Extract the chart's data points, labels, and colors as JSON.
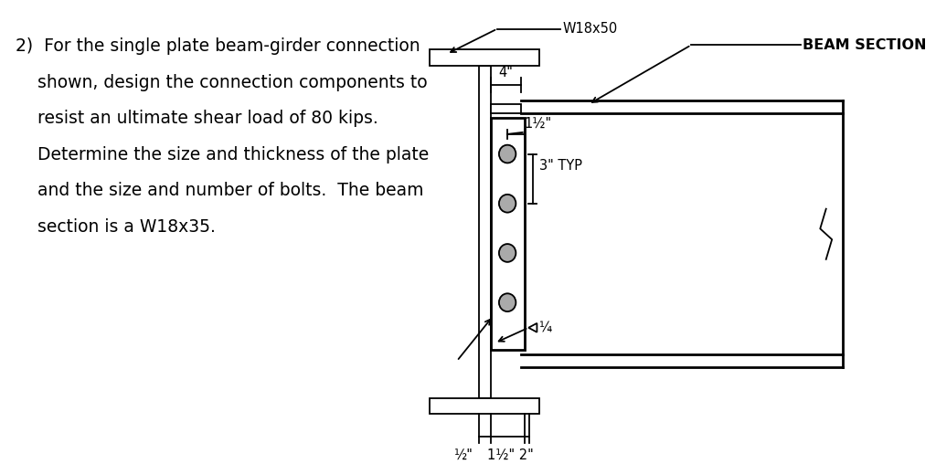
{
  "bg_color": "#ffffff",
  "text_color": "#000000",
  "line_color": "#000000",
  "gray_color": "#aaaaaa",
  "problem_lines": [
    "2)  For the single plate beam-girder connection",
    "    shown, design the connection components to",
    "    resist an ultimate shear load of 80 kips.",
    "    Determine the size and thickness of the plate",
    "    and the size and number of bolts.  The beam",
    "    section is a W18x35."
  ],
  "label_W18x50": "W18x50",
  "label_4in": "4\"",
  "label_beam_section": "BEAM SECTION",
  "label_1half": "1½\"",
  "label_3typ": "3\" TYP",
  "label_quarter": "¼",
  "label_half": "½\"",
  "label_1half_bot": "1½\" 2\"",
  "font_size_problem": 13.5,
  "font_size_label": 10.5
}
